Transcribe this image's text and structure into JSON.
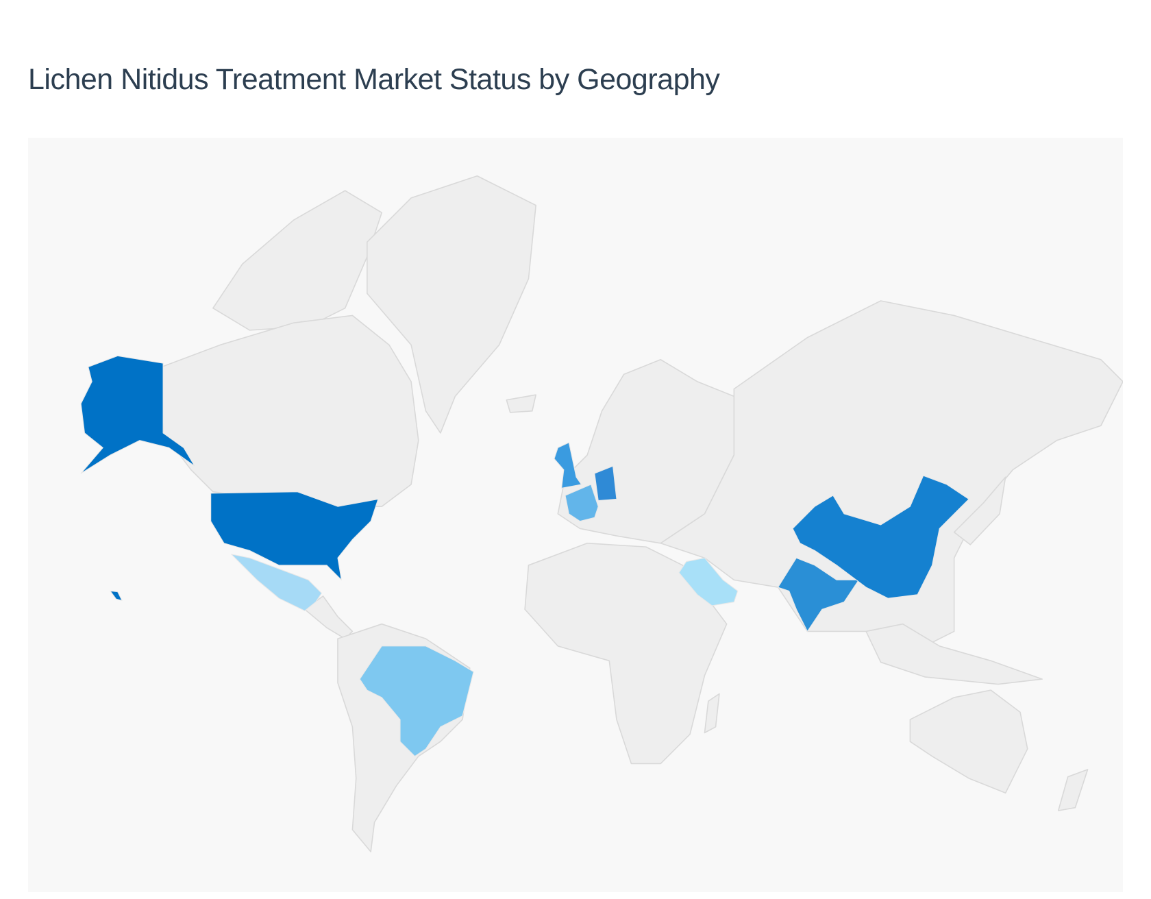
{
  "title": "Lichen Nitidus Treatment Market Status by Geography",
  "map": {
    "type": "choropleth",
    "projection": "world",
    "colors": {
      "background": "#f8f8f8",
      "land": "#eeeeee",
      "border": "#d9d9d9"
    },
    "highlighted_countries": [
      {
        "name": "United States",
        "color": "#0072c6"
      },
      {
        "name": "China",
        "color": "#1581d0"
      },
      {
        "name": "India",
        "color": "#2a8fd6"
      },
      {
        "name": "Germany",
        "color": "#2f8ad6"
      },
      {
        "name": "United Kingdom",
        "color": "#3a9be0"
      },
      {
        "name": "France",
        "color": "#62b5ea"
      },
      {
        "name": "Brazil",
        "color": "#7ec8f0"
      },
      {
        "name": "Mexico",
        "color": "#a6daf6"
      },
      {
        "name": "Saudi Arabia",
        "color": "#a8e0f8"
      }
    ]
  }
}
